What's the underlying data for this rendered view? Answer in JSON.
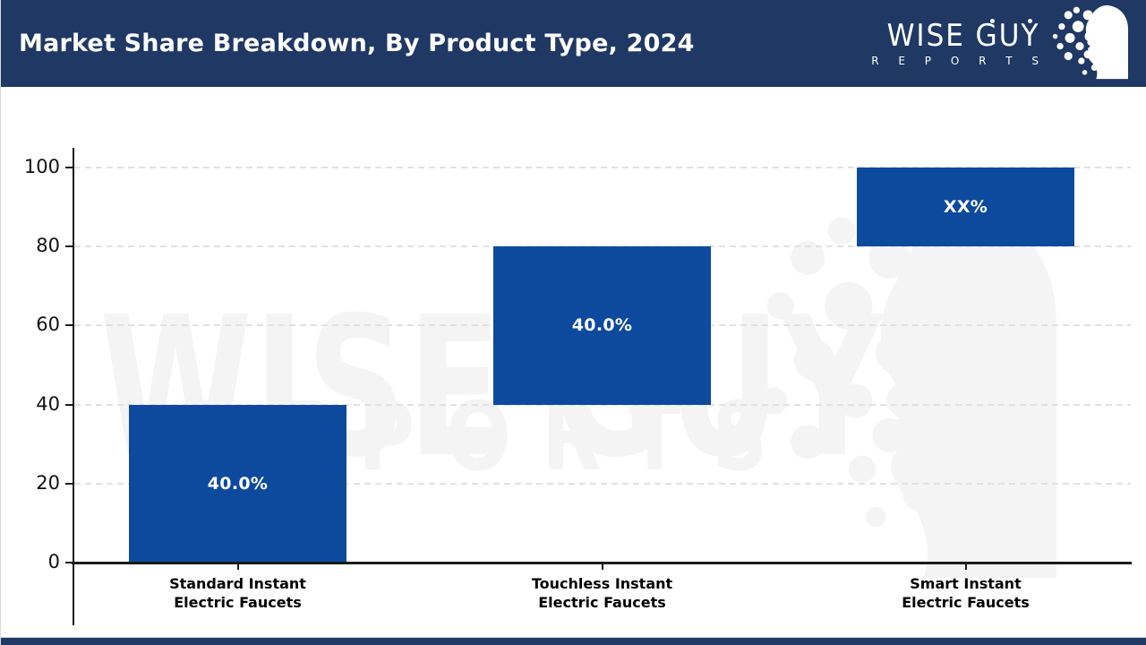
{
  "header": {
    "title": "Market Share Breakdown, By Product Type, 2024",
    "logo": {
      "line1": "WISE GUY",
      "line2": "R E P O R T S"
    }
  },
  "watermark": {
    "line1": "WISE GUY",
    "line2": "REPORTS"
  },
  "colors": {
    "header_bg": "#1f3864",
    "bar": "#0d4a9e",
    "bar_label": "#ffffff",
    "axis": "#1a1a1a",
    "gridline": "#e1e1e1",
    "watermark": "#f4f4f4",
    "footer_bg": "#1f3864"
  },
  "chart_data": {
    "type": "bar",
    "variant": "waterfall",
    "title": "Market Share Breakdown, By Product Type, 2024",
    "xlabel": "",
    "ylabel": "",
    "categories": [
      "Standard Instant Electric Faucets",
      "Touchless Instant Electric Faucets",
      "Smart Instant Electric Faucets"
    ],
    "category_lines": [
      [
        "Standard Instant",
        "Electric Faucets"
      ],
      [
        "Touchless Instant",
        "Electric Faucets"
      ],
      [
        "Smart Instant",
        "Electric Faucets"
      ]
    ],
    "bars": [
      {
        "label": "40.0%",
        "start": 0,
        "end": 40
      },
      {
        "label": "40.0%",
        "start": 40,
        "end": 80
      },
      {
        "label": "XX%",
        "start": 80,
        "end": 100
      }
    ],
    "values": [
      40,
      40,
      20
    ],
    "yticks": [
      0,
      20,
      40,
      60,
      80,
      100
    ],
    "ylim": [
      0,
      105
    ],
    "grid": "horizontal-dashed",
    "legend": "none"
  }
}
